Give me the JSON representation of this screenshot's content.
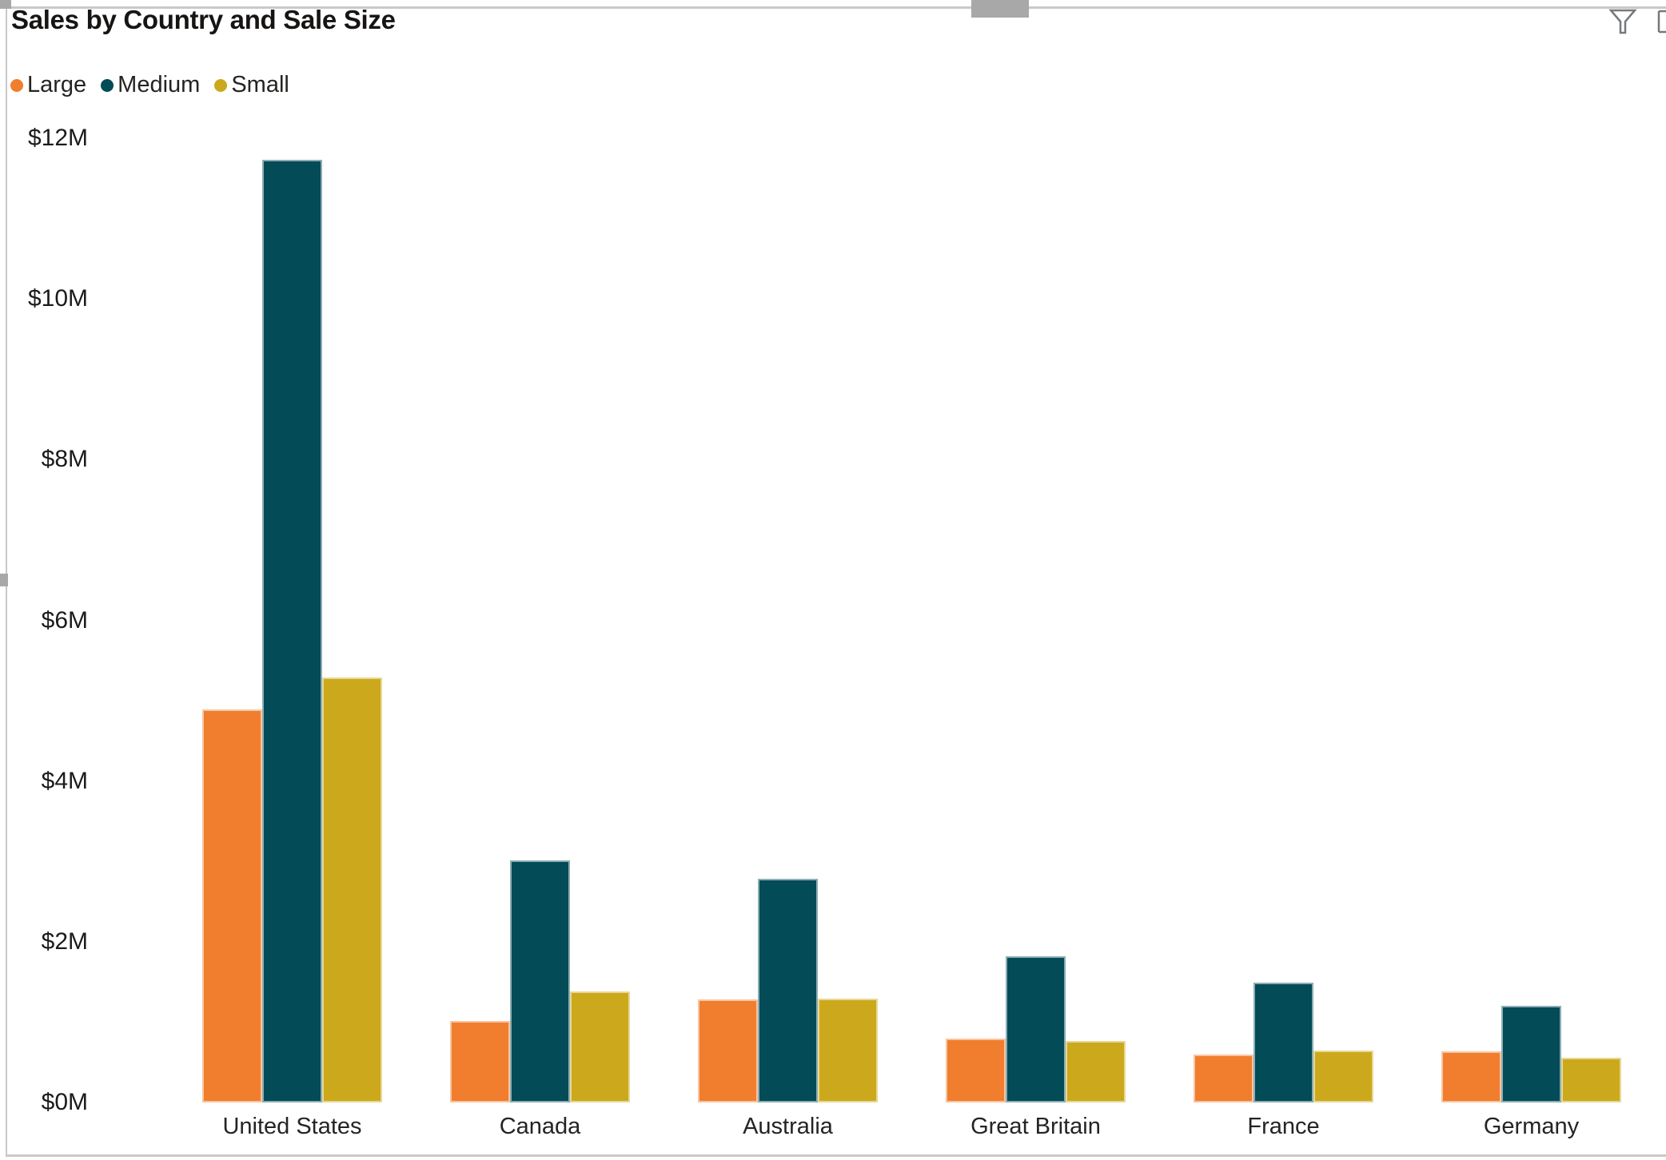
{
  "visual": {
    "header_icons": [
      {
        "name": "filter",
        "tooltip_glyph": "funnel"
      },
      {
        "name": "more-options",
        "tooltip_glyph": "clipped-panel"
      }
    ],
    "selection_frame": {
      "border_color": "#c9c9c9",
      "handle_color": "#a8a8a8"
    }
  },
  "chart_data": {
    "type": "bar",
    "title": "Sales by Country and Sale Size",
    "categories": [
      "United States",
      "Canada",
      "Australia",
      "Great Britain",
      "France",
      "Germany"
    ],
    "series": [
      {
        "name": "Large",
        "color": "#F07E2E",
        "values": [
          4.89,
          1.01,
          1.28,
          0.8,
          0.6,
          0.64
        ]
      },
      {
        "name": "Medium",
        "color": "#024B57",
        "values": [
          11.73,
          3.01,
          2.78,
          1.82,
          1.49,
          1.2
        ]
      },
      {
        "name": "Small",
        "color": "#CCA91C",
        "values": [
          5.29,
          1.38,
          1.29,
          0.77,
          0.65,
          0.56
        ]
      }
    ],
    "value_unit": "millions USD",
    "y_axis": {
      "tick_labels_top_to_bottom": [
        "$12M",
        "$10M",
        "$8M",
        "$6M",
        "$4M",
        "$2M",
        "$0M"
      ],
      "min": 0,
      "max": 12,
      "tick_step": 2,
      "format": "$#M"
    },
    "grid": false,
    "legend": {
      "position": "top-left",
      "labels": [
        "Large",
        "Medium",
        "Small"
      ]
    },
    "bar_outline_color": "rgba(255,255,255,0.55)"
  }
}
